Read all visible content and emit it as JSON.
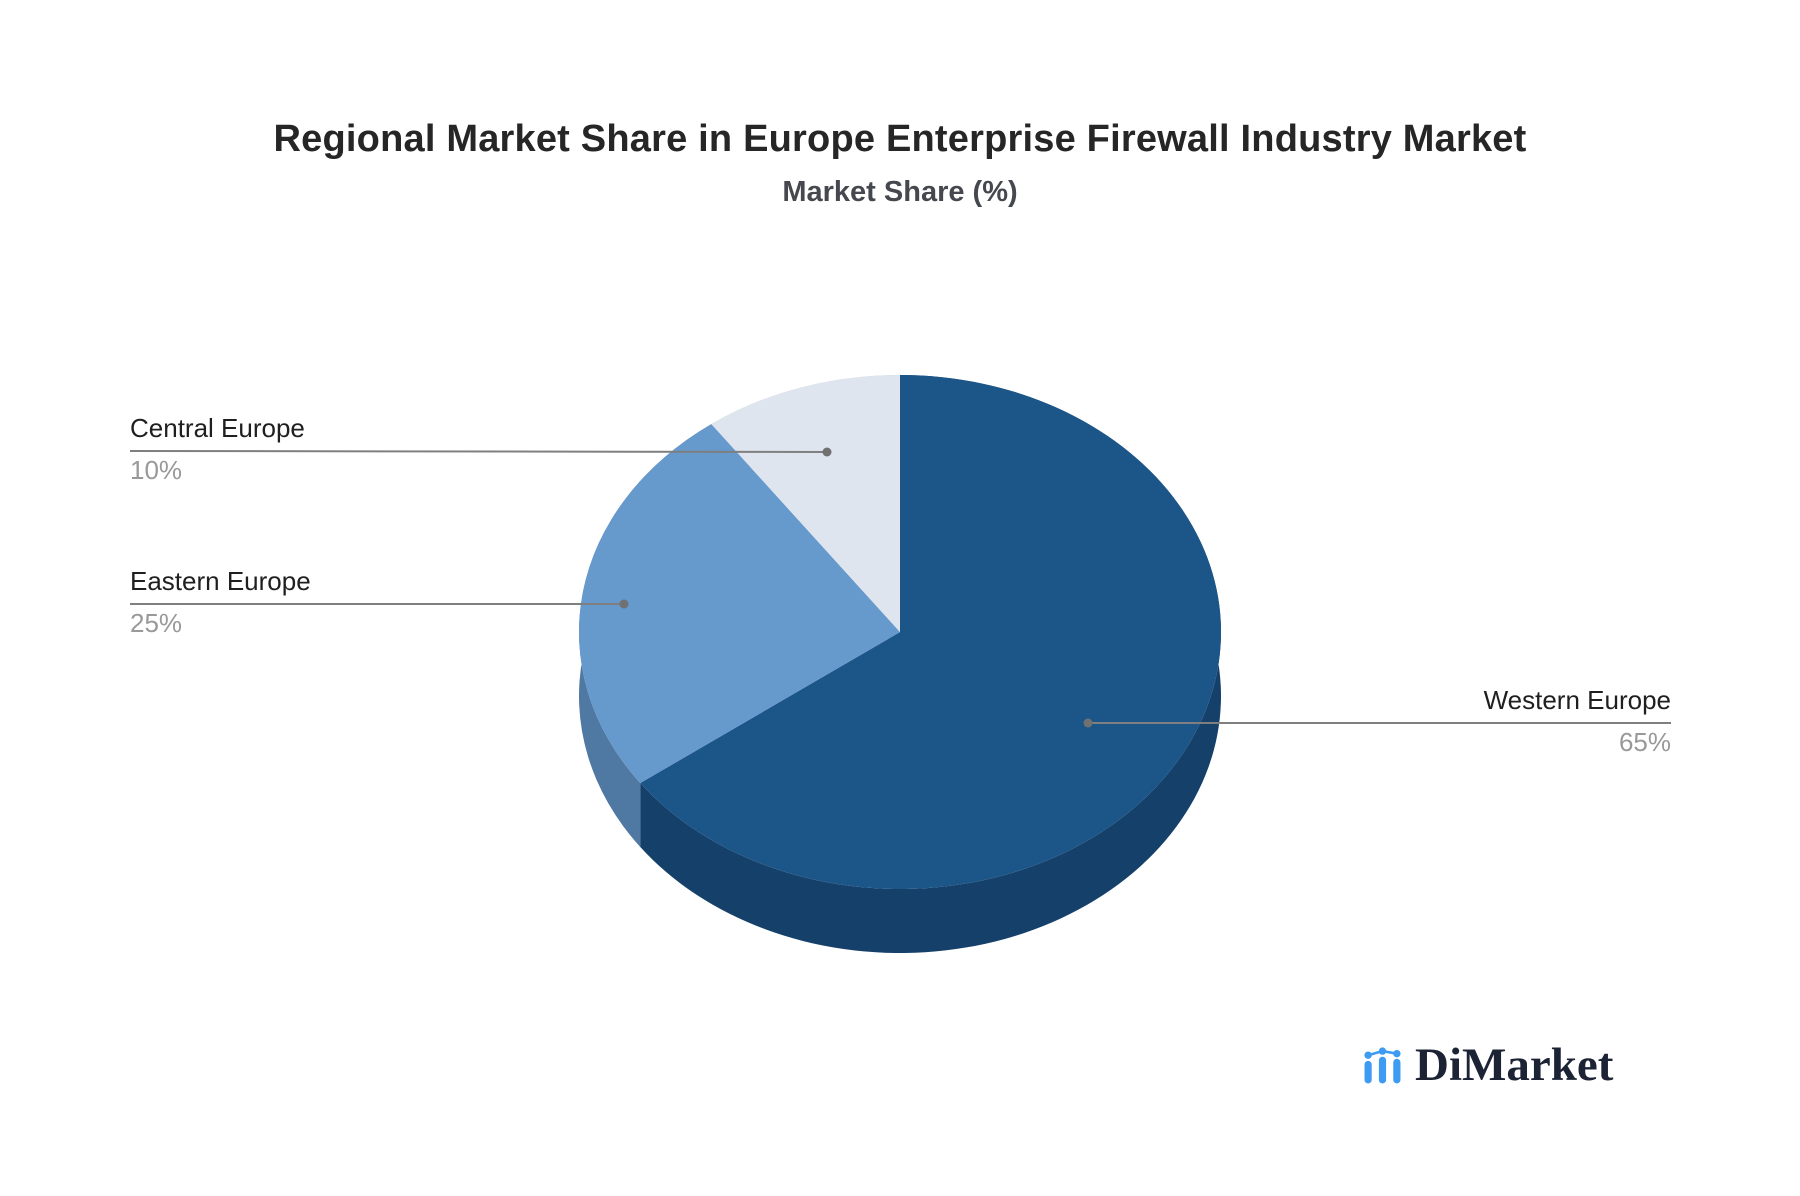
{
  "header": {
    "title": "Regional Market Share in Europe Enterprise Firewall Industry Market",
    "subtitle": "Market Share (%)"
  },
  "chart_data": {
    "type": "pie",
    "title": "Regional Market Share in Europe Enterprise Firewall Industry Market",
    "subtitle": "Market Share (%)",
    "unit": "%",
    "style": "3d-pie",
    "start_angle": "12-oclock",
    "direction": "clockwise",
    "legend": "none",
    "label_style": "outside-leader-lines",
    "name_color": "#1f1f1f",
    "pct_color": "#999999",
    "leader_line_color": "#7f7f7f",
    "leader_dot_color": "#717171",
    "slices": [
      {
        "name": "Western Europe",
        "value": 65,
        "pct_label": "65%",
        "color": "#1C5688",
        "side_color": "#15406A"
      },
      {
        "name": "Eastern Europe",
        "value": 25,
        "pct_label": "25%",
        "color": "#6699CC",
        "side_color": "#4F78A2"
      },
      {
        "name": "Central Europe",
        "value": 10,
        "pct_label": "10%",
        "color": "#DEE5EF",
        "side_color": "#B6C1D0"
      }
    ]
  },
  "branding": {
    "logo_text": "DiMarket",
    "logo_icon": "bar-line-chart-icon",
    "icon_color": "#3E9BF2",
    "text_color": "#1C2334"
  }
}
